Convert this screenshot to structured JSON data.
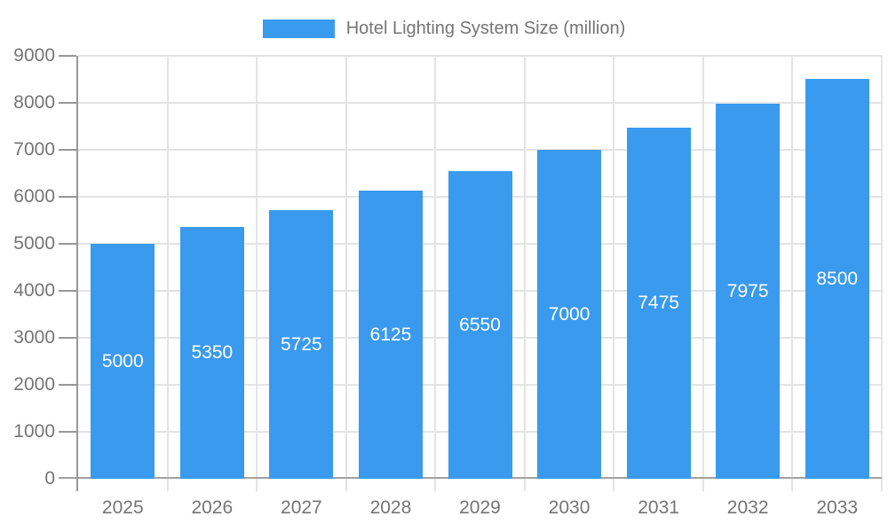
{
  "legend": {
    "label": "Hotel Lighting System Size (million)"
  },
  "colors": {
    "bar": "#3A9AEE",
    "grid": "#e4e4e4",
    "axis": "#989898",
    "tick_label": "#757575",
    "value_label": "#ffffff",
    "background": "#ffffff"
  },
  "chart_data": {
    "type": "bar",
    "title": "Hotel Lighting System Size (million)",
    "categories": [
      "2025",
      "2026",
      "2027",
      "2028",
      "2029",
      "2030",
      "2031",
      "2032",
      "2033"
    ],
    "values": [
      5000,
      5350,
      5725,
      6125,
      6550,
      7000,
      7475,
      7975,
      8500
    ],
    "xlabel": "",
    "ylabel": "",
    "ylim": [
      0,
      9000
    ],
    "yticks": [
      0,
      1000,
      2000,
      3000,
      4000,
      5000,
      6000,
      7000,
      8000,
      9000
    ],
    "grid": true,
    "legend_position": "top",
    "bar_value_labels": "inside-center"
  }
}
